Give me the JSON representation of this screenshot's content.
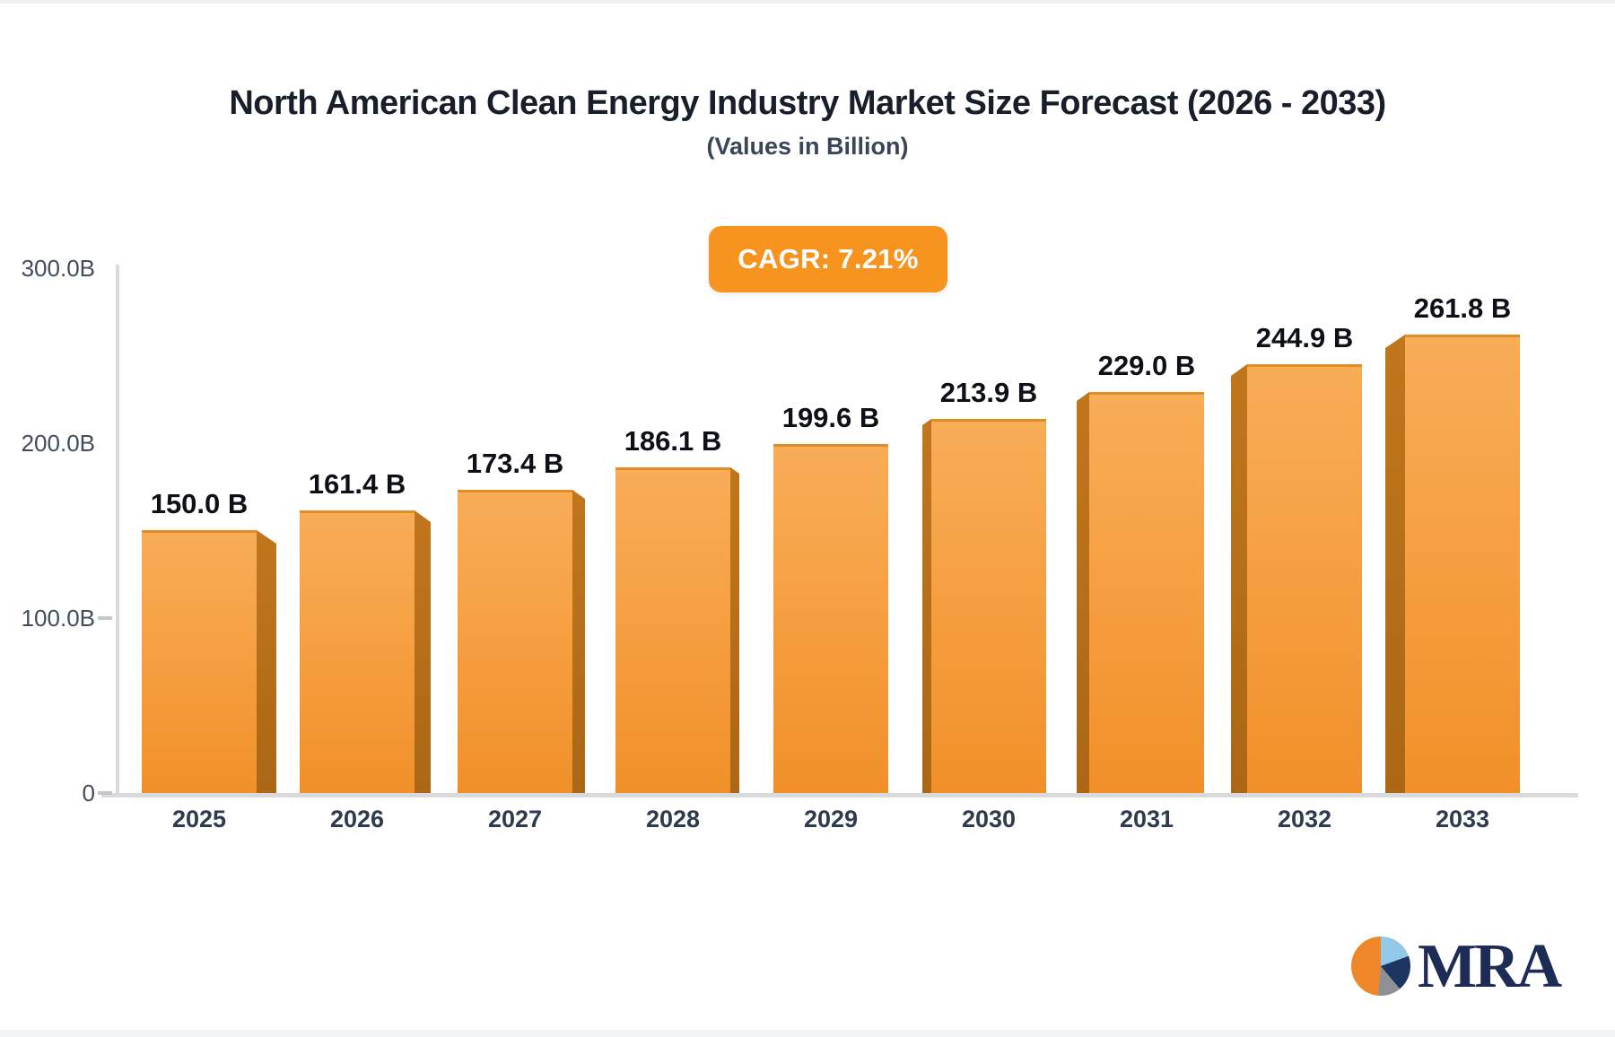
{
  "page": {
    "title": "North American Clean Energy Industry Market Size Forecast (2026 - 2033)",
    "subtitle": "(Values in Billion)"
  },
  "badge": {
    "label": "CAGR: 7.21%",
    "bg_color": "#f6941f"
  },
  "chart_data": {
    "type": "bar",
    "title": "North American Clean Energy Industry Market Size Forecast (2026 - 2033)",
    "subtitle": "(Values in Billion)",
    "categories": [
      "2025",
      "2026",
      "2027",
      "2028",
      "2029",
      "2030",
      "2031",
      "2032",
      "2033"
    ],
    "values": [
      150.0,
      161.4,
      173.4,
      186.1,
      199.6,
      213.9,
      229.0,
      244.9,
      261.8
    ],
    "value_labels": [
      "150.0 B",
      "161.4 B",
      "173.4 B",
      "186.1 B",
      "199.6 B",
      "213.9 B",
      "229.0 B",
      "244.9 B",
      "261.8 B"
    ],
    "unit": "Billion",
    "cagr": "7.21%",
    "ylim": [
      0,
      300
    ],
    "yticks": [
      {
        "label": "300.0B",
        "value": 300,
        "dash": false
      },
      {
        "label": "200.0B",
        "value": 200,
        "dash": false
      },
      {
        "label": "100.0B",
        "value": 100,
        "dash": true
      },
      {
        "label": "0",
        "value": 0,
        "dash": true
      }
    ],
    "grid": false,
    "legend": false,
    "style": "3d-perspective-bars",
    "colors": {
      "bar_top": "#f9ad57",
      "bar_bottom": "#f19029",
      "bar_side_top": "#c1761d",
      "bar_side_bottom": "#ab6715",
      "axis": "#d8dadd"
    }
  },
  "logo": {
    "text": "MRA",
    "colors": {
      "orange": "#f0862a",
      "light_blue": "#92c9e9",
      "navy": "#1c3561",
      "gray": "#8f9097",
      "text_navy": "#1d2c55"
    }
  }
}
